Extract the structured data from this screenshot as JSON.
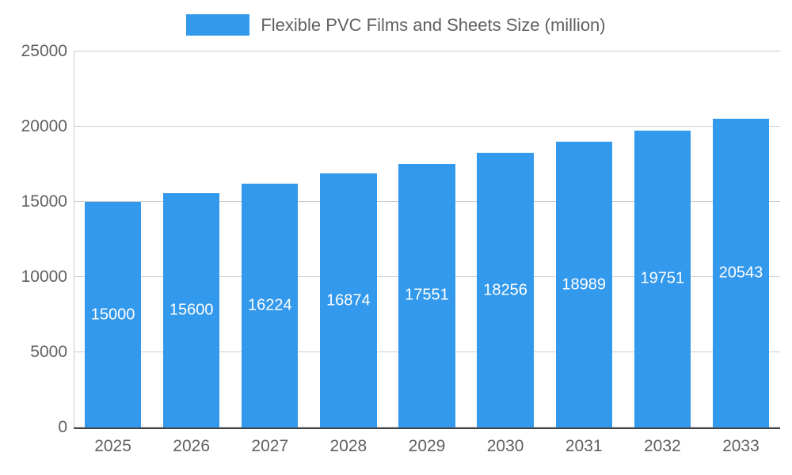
{
  "colors": {
    "bar": "#3399EC",
    "bar_label": "#FFFFFF",
    "axis_text": "#616161",
    "grid": "#CCCCCC",
    "axis_line": "#424242"
  },
  "chart_data": {
    "type": "bar",
    "title": "Flexible PVC Films and Sheets Size (million)",
    "categories": [
      "2025",
      "2026",
      "2027",
      "2028",
      "2029",
      "2030",
      "2031",
      "2032",
      "2033"
    ],
    "values": [
      15000,
      15600,
      16224,
      16874,
      17551,
      18256,
      18989,
      19751,
      20543
    ],
    "value_labels": [
      "15000",
      "15600",
      "16224",
      "16874",
      "17551",
      "18256",
      "18989",
      "19751",
      "20543"
    ],
    "xlabel": "",
    "ylabel": "",
    "ylim": [
      0,
      25000
    ],
    "yticks": [
      0,
      5000,
      10000,
      15000,
      20000,
      25000
    ],
    "ytick_labels": [
      "0",
      "5000",
      "10000",
      "15000",
      "20000",
      "25000"
    ],
    "grid": true,
    "legend_position": "top",
    "bar_width_fraction": 0.72
  }
}
